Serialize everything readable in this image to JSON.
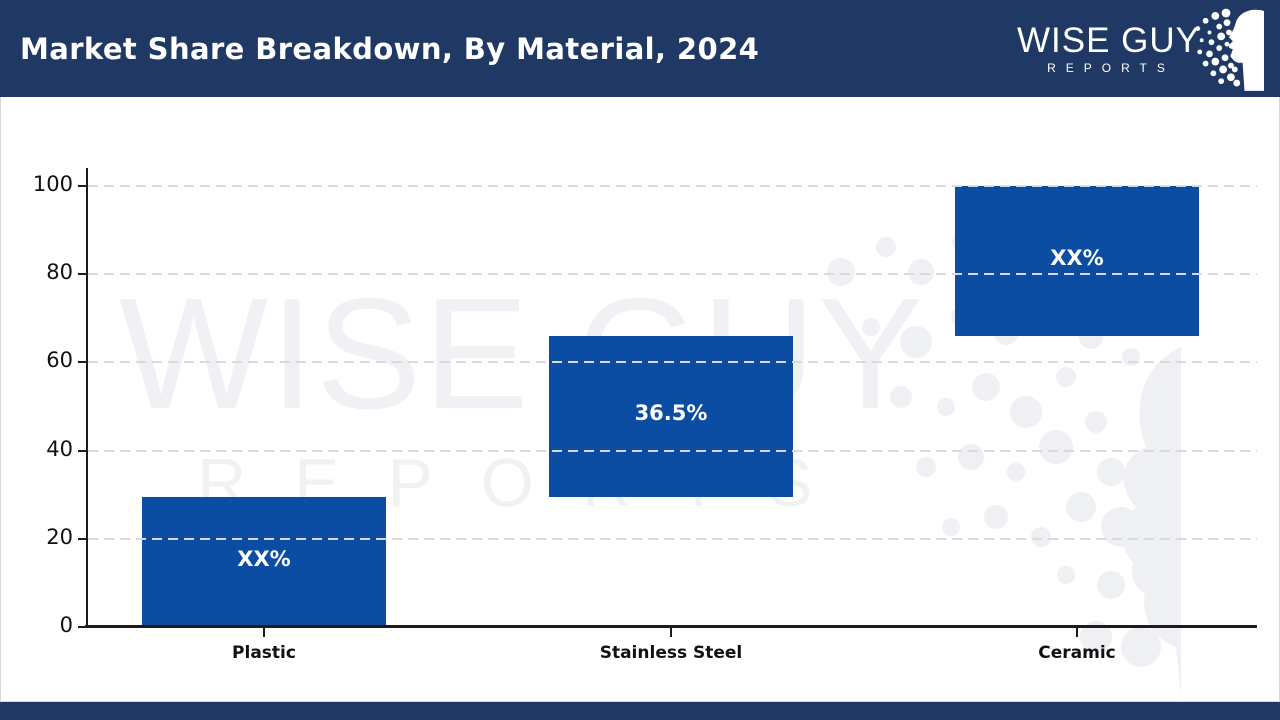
{
  "header": {
    "title": "Market Share Breakdown, By Material, 2024",
    "logo": {
      "line1": "WISE GUY",
      "line2": "REPORTS"
    }
  },
  "watermark": {
    "line1": "WISE GUY",
    "line2": "REPORTS"
  },
  "chart_data": {
    "type": "bar",
    "subtype": "waterfall",
    "title": "Market Share Breakdown, By Material, 2024",
    "categories": [
      "Plastic",
      "Stainless Steel",
      "Ceramic"
    ],
    "segments": [
      {
        "category": "Plastic",
        "start": 0,
        "end": 29.5,
        "label": "XX%"
      },
      {
        "category": "Stainless Steel",
        "start": 29.5,
        "end": 66,
        "label": "36.5%"
      },
      {
        "category": "Ceramic",
        "start": 66,
        "end": 100,
        "label": "XX%"
      }
    ],
    "y_ticks": [
      0,
      20,
      40,
      60,
      80,
      100
    ],
    "ylim": [
      0,
      104
    ],
    "xlabel": "",
    "ylabel": "",
    "grid": "horizontal-dashed",
    "legend": "none",
    "colors": {
      "bar": "#0B4DA2",
      "bar_label_text": "#ffffff",
      "grid": "#d9dade",
      "axis": "#1c1c1c",
      "header_bg": "#1F3864",
      "footer_bg": "#1F3864",
      "watermark": "#f0f1f4"
    }
  }
}
